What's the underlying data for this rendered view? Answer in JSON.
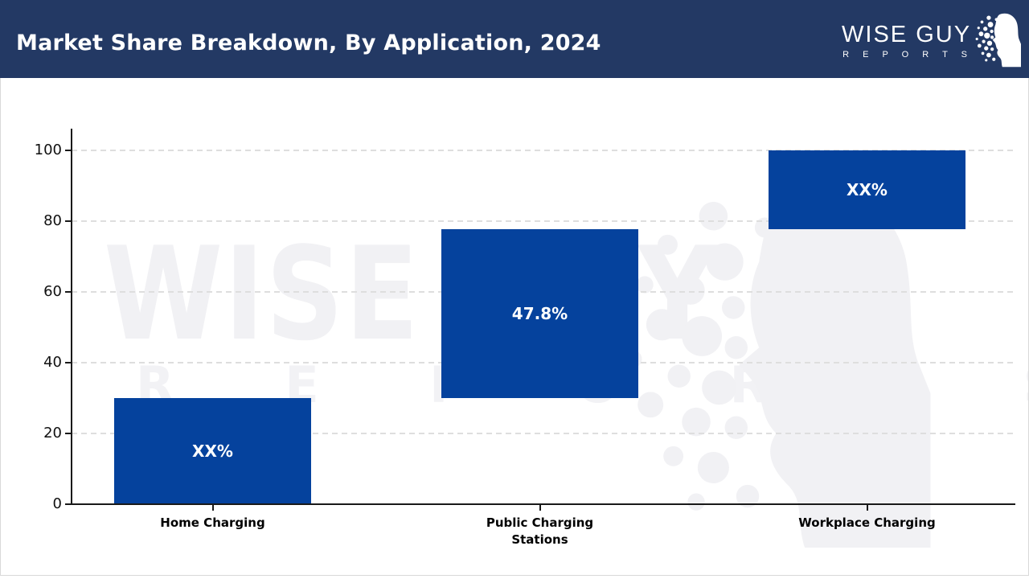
{
  "header": {
    "title": "Market Share Breakdown, By Application, 2024",
    "bg_color": "#233964",
    "logo": {
      "name": "Wise Guy Reports",
      "line1": "WISE GUY",
      "line2": "R E P O R T S"
    }
  },
  "watermark": {
    "line1": "WISE GUY",
    "line2": "R E P O R T S"
  },
  "chart_data": {
    "type": "bar",
    "variant": "stacked-percentage-waterfall",
    "title": "Market Share Breakdown, By Application, 2024",
    "categories": [
      "Home Charging",
      "Public Charging\nStations",
      "Workplace Charging"
    ],
    "bars": [
      {
        "category": "Home Charging",
        "start": 0,
        "end": 30,
        "label": "XX%"
      },
      {
        "category": "Public Charging Stations",
        "start": 30,
        "end": 77.8,
        "label": "47.8%"
      },
      {
        "category": "Workplace Charging",
        "start": 77.8,
        "end": 100,
        "label": "XX%"
      }
    ],
    "xlabel": "",
    "ylabel": "",
    "ylim": [
      0,
      106
    ],
    "yticks": [
      0,
      20,
      40,
      60,
      80,
      100
    ],
    "grid": "horizontal-dashed",
    "legend_position": "none",
    "bar_color": "#05429d",
    "bar_label_color": "#ffffff",
    "axis_color": "#191919",
    "grid_color": "#dedede"
  }
}
